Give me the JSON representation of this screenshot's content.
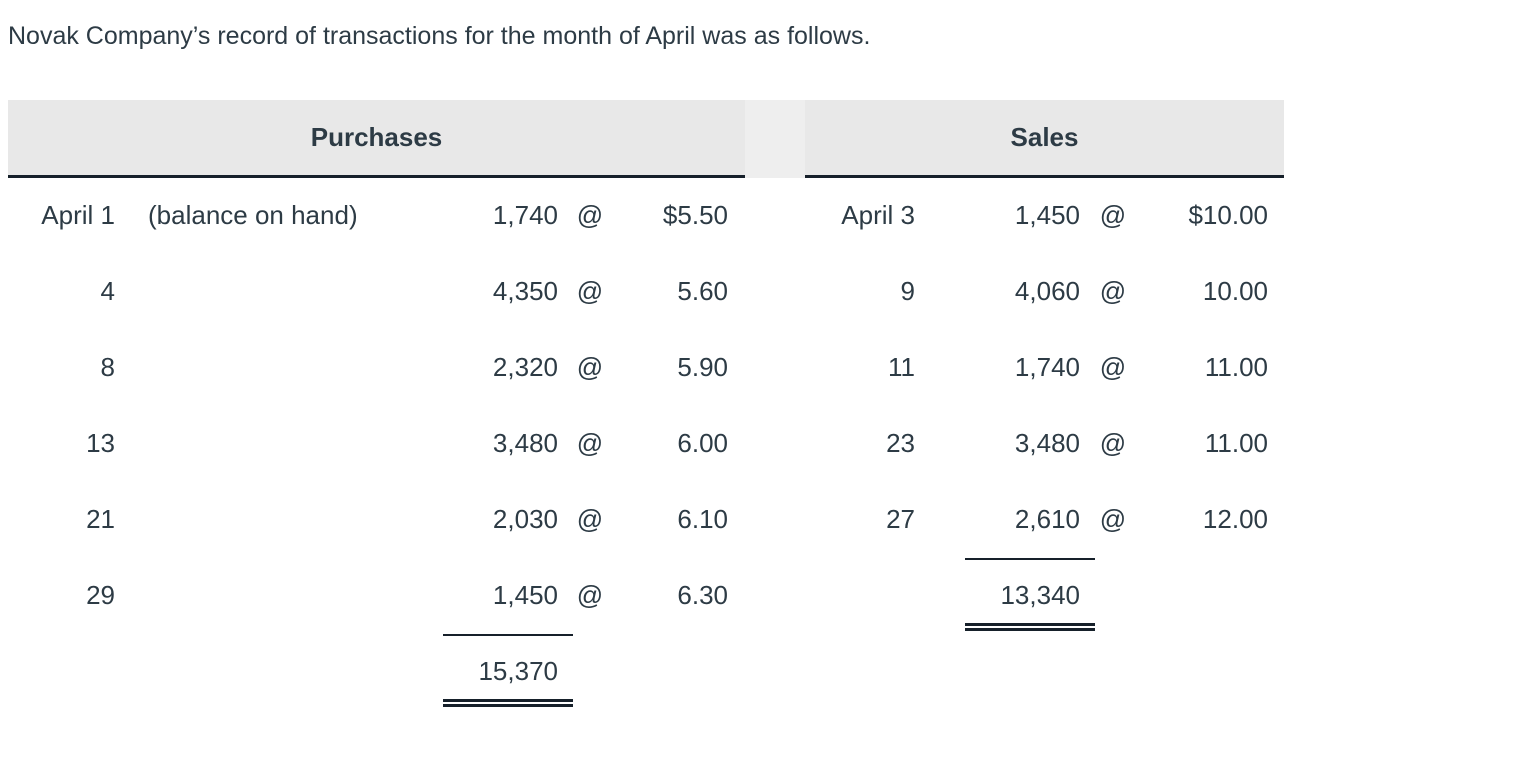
{
  "intro": "Novak Company’s record of transactions for the month of April was as follows.",
  "table": {
    "at_symbol": "@",
    "purchases": {
      "header": "Purchases",
      "rows": [
        {
          "date": "April 1",
          "note": "(balance on hand)",
          "qty": "1,740",
          "price": "$5.50"
        },
        {
          "date": "4",
          "note": "",
          "qty": "4,350",
          "price": "5.60"
        },
        {
          "date": "8",
          "note": "",
          "qty": "2,320",
          "price": "5.90"
        },
        {
          "date": "13",
          "note": "",
          "qty": "3,480",
          "price": "6.00"
        },
        {
          "date": "21",
          "note": "",
          "qty": "2,030",
          "price": "6.10"
        },
        {
          "date": "29",
          "note": "",
          "qty": "1,450",
          "price": "6.30"
        }
      ],
      "total": "15,370"
    },
    "sales": {
      "header": "Sales",
      "rows": [
        {
          "date": "April 3",
          "qty": "1,450",
          "price": "$10.00"
        },
        {
          "date": "9",
          "qty": "4,060",
          "price": "10.00"
        },
        {
          "date": "11",
          "qty": "1,740",
          "price": "11.00"
        },
        {
          "date": "23",
          "qty": "3,480",
          "price": "11.00"
        },
        {
          "date": "27",
          "qty": "2,610",
          "price": "12.00"
        }
      ],
      "total": "13,340"
    }
  },
  "colors": {
    "text": "#2d3b45",
    "header_band": "#e8e8e8",
    "rule": "#16202a"
  }
}
